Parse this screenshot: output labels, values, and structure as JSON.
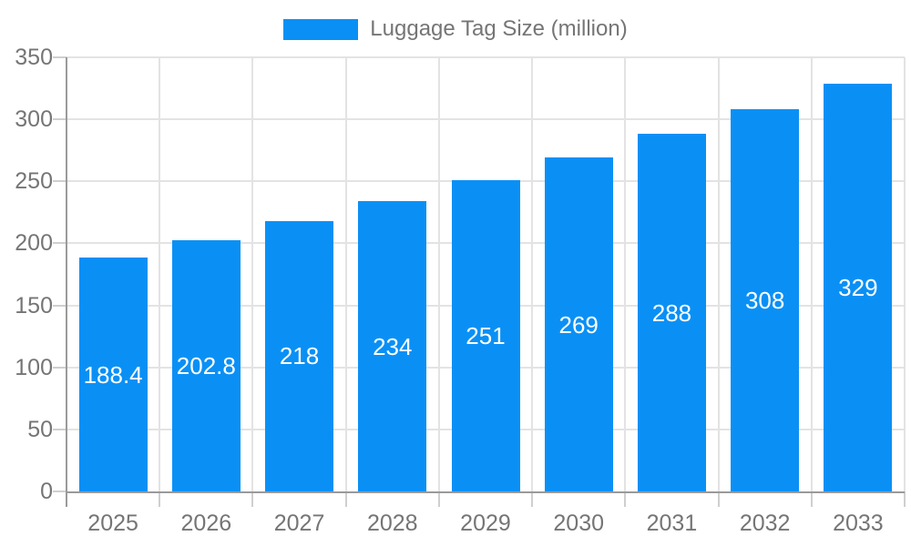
{
  "chart_data": {
    "type": "bar",
    "title": "",
    "xlabel": "",
    "ylabel": "",
    "legend": {
      "label": "Luggage Tag Size (million)",
      "position": "top-center"
    },
    "categories": [
      "2025",
      "2026",
      "2027",
      "2028",
      "2029",
      "2030",
      "2031",
      "2032",
      "2033"
    ],
    "series": [
      {
        "name": "Luggage Tag Size (million)",
        "values": [
          188.4,
          202.8,
          218,
          234,
          251,
          269,
          288,
          308,
          329
        ]
      }
    ],
    "value_labels": [
      "188.4",
      "202.8",
      "218",
      "234",
      "251",
      "269",
      "288",
      "308",
      "329"
    ],
    "ylim": [
      0,
      350
    ],
    "yticks": [
      0,
      50,
      100,
      150,
      200,
      250,
      300,
      350
    ],
    "grid": "both",
    "value_label_position": "inside-center"
  },
  "colors": {
    "bar": "#0a90f5",
    "axis": "#9a9a9a",
    "grid": "#e3e3e3",
    "tick": "#cfcfcf",
    "label": "#757575",
    "value_label": "#ffffff",
    "background": "#ffffff"
  }
}
